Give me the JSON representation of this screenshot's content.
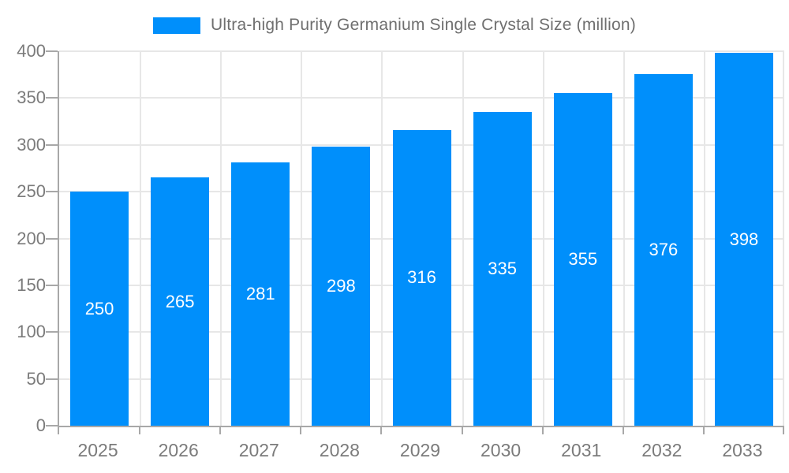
{
  "chart_data": {
    "type": "bar",
    "title": "Ultra-high Purity Germanium Single Crystal Size (million)",
    "categories": [
      "2025",
      "2026",
      "2027",
      "2028",
      "2029",
      "2030",
      "2031",
      "2032",
      "2033"
    ],
    "series": [
      {
        "name": "Ultra-high Purity Germanium Single Crystal Size (million)",
        "values": [
          250,
          265,
          281,
          298,
          316,
          335,
          355,
          376,
          398
        ]
      }
    ],
    "xlabel": "",
    "ylabel": "",
    "ylim": [
      0,
      400
    ],
    "ytick_step": 50,
    "ytick_labels": [
      "0",
      "50",
      "100",
      "150",
      "200",
      "250",
      "300",
      "350",
      "400"
    ],
    "grid": "both",
    "legend_position": "top",
    "value_labels": "inside-center"
  },
  "colors": {
    "bar": "#008FFB",
    "value_label": "#ffffff",
    "axis_line": "#a8a8a8",
    "gridline": "#e7e7e7",
    "tick_label": "#7b7b7b",
    "legend_text": "#6f6f6f",
    "background": "#ffffff"
  }
}
